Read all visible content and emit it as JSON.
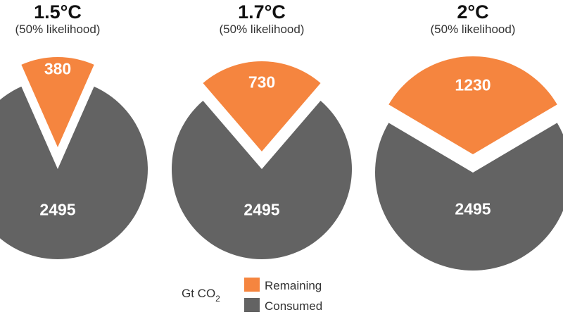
{
  "unit_label": "Gt CO",
  "unit_subscript": "2",
  "colors": {
    "remaining": "#f5853f",
    "consumed": "#636363",
    "background": "#ffffff"
  },
  "legend": {
    "remaining_label": "Remaining",
    "consumed_label": "Consumed"
  },
  "chart_data": [
    {
      "type": "pie",
      "title": "1.5°C",
      "subtitle": "(50% likelihood)",
      "slices": [
        {
          "name": "Remaining",
          "value": 380,
          "label": "380",
          "exploded": true
        },
        {
          "name": "Consumed",
          "value": 2495,
          "label": "2495",
          "exploded": false
        }
      ]
    },
    {
      "type": "pie",
      "title": "1.7°C",
      "subtitle": "(50% likelihood)",
      "slices": [
        {
          "name": "Remaining",
          "value": 730,
          "label": "730",
          "exploded": true
        },
        {
          "name": "Consumed",
          "value": 2495,
          "label": "2495",
          "exploded": false
        }
      ]
    },
    {
      "type": "pie",
      "title": "2°C",
      "subtitle": "(50% likelihood)",
      "slices": [
        {
          "name": "Remaining",
          "value": 1230,
          "label": "1230",
          "exploded": true
        },
        {
          "name": "Consumed",
          "value": 2495,
          "label": "2495",
          "exploded": false
        }
      ]
    }
  ]
}
